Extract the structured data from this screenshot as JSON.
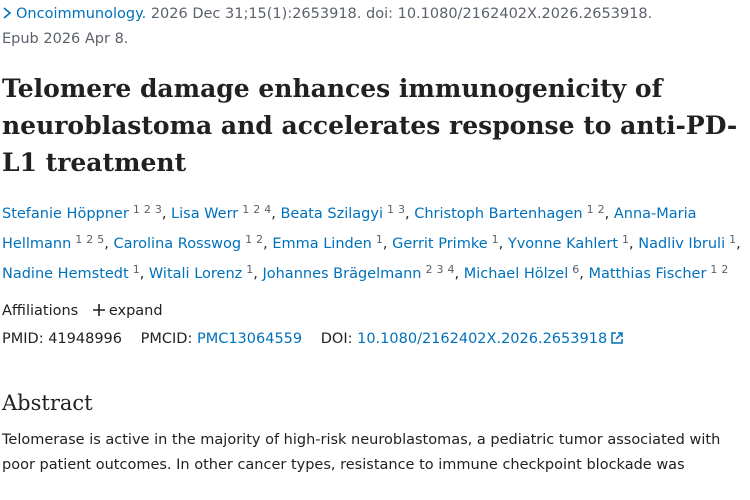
{
  "citation": {
    "journal": "Oncoimmunology.",
    "details": "2026 Dec 31;15(1):2653918. doi: 10.1080/2162402X.2026.2653918.",
    "epub": "Epub 2026 Apr 8."
  },
  "title": "Telomere damage enhances immunogenicity of neuroblastoma and accelerates response to anti-PD-L1 treatment",
  "authors": [
    {
      "name": "Stefanie Höppner",
      "affiliations": [
        "1",
        "2",
        "3"
      ],
      "separator": ","
    },
    {
      "name": "Lisa Werr",
      "affiliations": [
        "1",
        "2",
        "4"
      ],
      "separator": ","
    },
    {
      "name": "Beata Szilagyi",
      "affiliations": [
        "1",
        "3"
      ],
      "separator": ","
    },
    {
      "name": "Christoph Bartenhagen",
      "affiliations": [
        "1",
        "2"
      ],
      "separator": ","
    },
    {
      "name": "Anna-Maria Hellmann",
      "affiliations": [
        "1",
        "2",
        "5"
      ],
      "separator": ","
    },
    {
      "name": "Carolina Rosswog",
      "affiliations": [
        "1",
        "2"
      ],
      "separator": ","
    },
    {
      "name": "Emma Linden",
      "affiliations": [
        "1"
      ],
      "separator": ","
    },
    {
      "name": "Gerrit Primke",
      "affiliations": [
        "1"
      ],
      "separator": ","
    },
    {
      "name": "Yvonne Kahlert",
      "affiliations": [
        "1"
      ],
      "separator": ","
    },
    {
      "name": "Nadliv Ibruli",
      "affiliations": [
        "1"
      ],
      "separator": ","
    },
    {
      "name": "Nadine Hemstedt",
      "affiliations": [
        "1"
      ],
      "separator": ","
    },
    {
      "name": "Witali Lorenz",
      "affiliations": [
        "1"
      ],
      "separator": ","
    },
    {
      "name": "Johannes Brägelmann",
      "affiliations": [
        "2",
        "3",
        "4"
      ],
      "separator": ","
    },
    {
      "name": "Michael Hölzel",
      "affiliations": [
        "6"
      ],
      "separator": ","
    },
    {
      "name": "Matthias Fischer",
      "affiliations": [
        "1",
        "2"
      ]
    }
  ],
  "affiliations": {
    "label": "Affiliations",
    "expand": "expand"
  },
  "identifiers": {
    "pmid_label": "PMID:",
    "pmid": "41948996",
    "pmcid_label": "PMCID:",
    "pmcid": "PMC13064559",
    "doi_label": "DOI:",
    "doi": "10.1080/2162402X.2026.2653918"
  },
  "abstract": {
    "heading": "Abstract",
    "text": "Telomerase is active in the majority of high-risk neuroblastomas, a pediatric tumor associated with poor patient outcomes. In other cancer types, resistance to immune checkpoint blockade was"
  }
}
